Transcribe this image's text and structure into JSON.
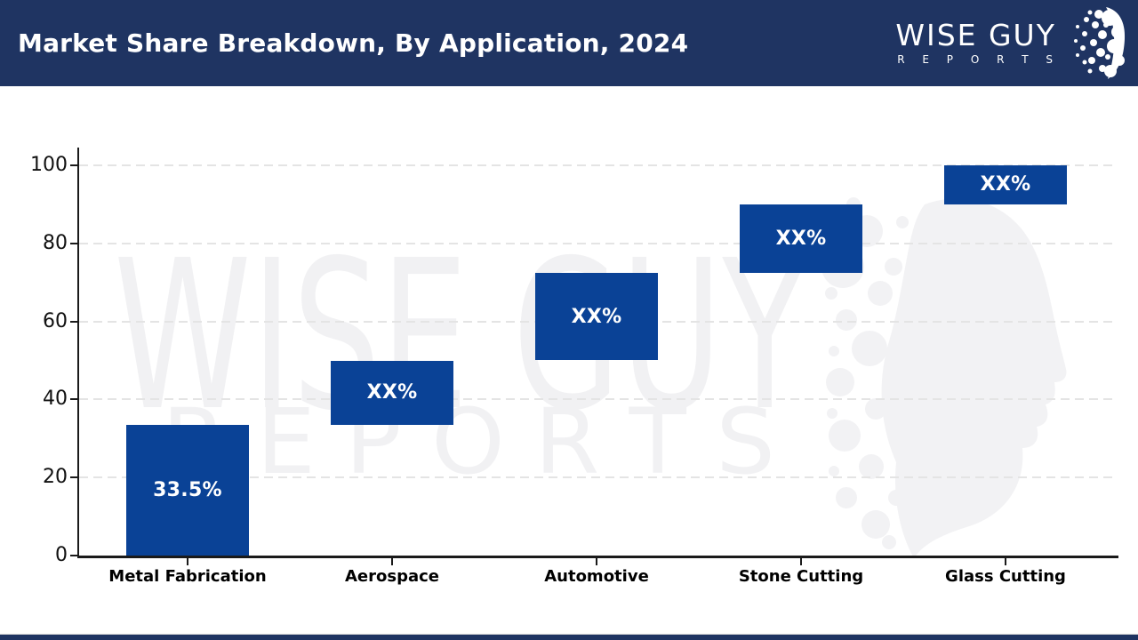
{
  "header": {
    "title": "Market Share Breakdown, By Application, 2024",
    "logo": {
      "line1": "WISE GUY",
      "line2": "R E P O R T S"
    }
  },
  "watermark": {
    "line1": "WISE GUY",
    "line2": "R E P O R T S"
  },
  "colors": {
    "header_bg": "#1f3462",
    "footer_bg": "#1f3462",
    "bar_blue": "#0a4296",
    "grid": "#e4e4e4",
    "axis": "#1a1a1a",
    "watermark_gray": "#f1f1f3",
    "title_text": "#ffffff",
    "bar_label_text": "#ffffff"
  },
  "chart_data": {
    "type": "bar",
    "subtype": "waterfall",
    "title": "Market Share Breakdown, By Application, 2024",
    "categories": [
      "Metal Fabrication",
      "Aerospace",
      "Automotive",
      "Stone Cutting",
      "Glass Cutting"
    ],
    "segments": [
      {
        "category": "Metal Fabrication",
        "start": 0,
        "end": 33.5,
        "label": "33.5%"
      },
      {
        "category": "Aerospace",
        "start": 33.5,
        "end": 50,
        "label": "XX%"
      },
      {
        "category": "Automotive",
        "start": 50,
        "end": 72.5,
        "label": "XX%"
      },
      {
        "category": "Stone Cutting",
        "start": 72.5,
        "end": 90,
        "label": "XX%"
      },
      {
        "category": "Glass Cutting",
        "start": 90,
        "end": 100,
        "label": "XX%"
      }
    ],
    "xlabel": "",
    "ylabel": "",
    "ylim": [
      0,
      100
    ],
    "yticks": [
      0,
      20,
      40,
      60,
      80,
      100
    ],
    "grid": "horizontal-dashed",
    "legend": "none",
    "bar_color": "#0a4296"
  }
}
